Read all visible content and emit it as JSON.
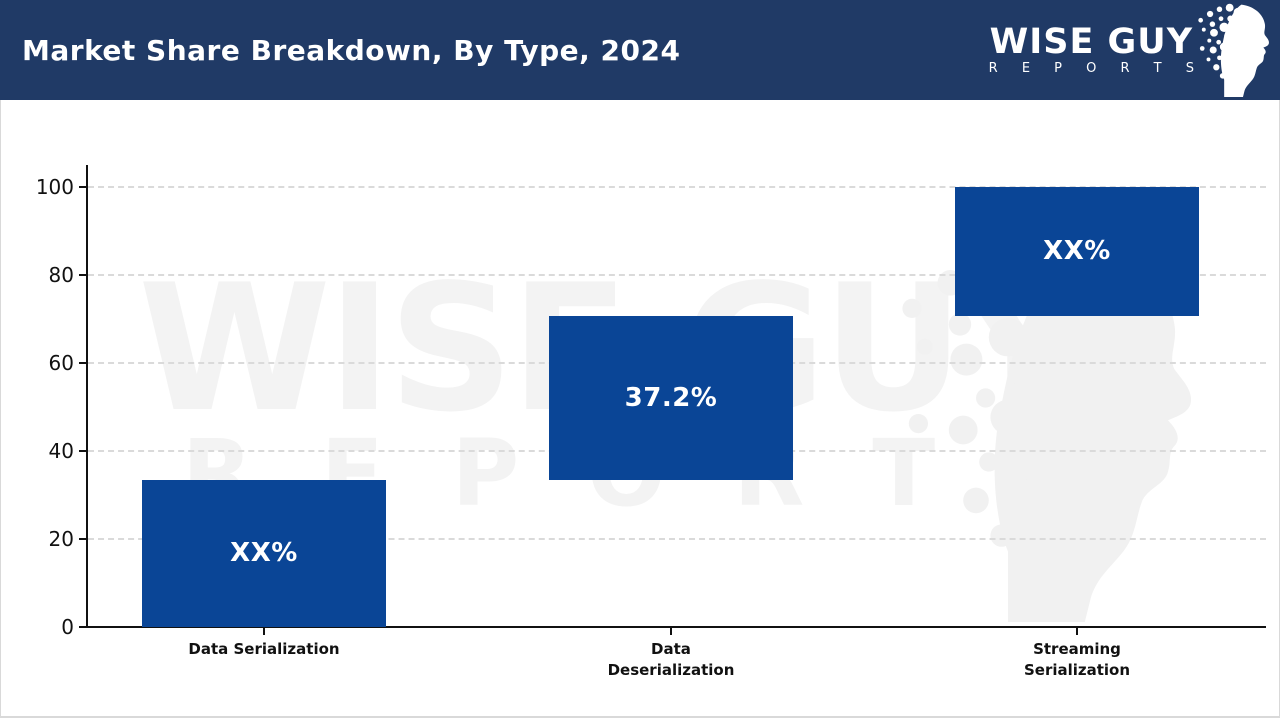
{
  "header": {
    "title": "Market Share Breakdown, By Type, 2024",
    "logo": {
      "line1": "WISE GUY",
      "line2": "R E P O R T S"
    }
  },
  "watermark": {
    "line1": "WISE GUY",
    "line2": "R E P O R T S"
  },
  "chart_data": {
    "type": "bar",
    "subtype": "waterfall",
    "title": "Market Share Breakdown, By Type, 2024",
    "categories": [
      "Data Serialization",
      "Data\nDeserialization",
      "Streaming\nSerialization"
    ],
    "segments": [
      {
        "category": "Data Serialization",
        "start": 0,
        "end": 33.5,
        "label": "XX%"
      },
      {
        "category": "Data\nDeserialization",
        "start": 33.5,
        "end": 70.7,
        "label": "37.2%"
      },
      {
        "category": "Streaming\nSerialization",
        "start": 70.7,
        "end": 100,
        "label": "XX%"
      }
    ],
    "yticks": [
      0,
      20,
      40,
      60,
      80,
      100
    ],
    "ylim": [
      0,
      100
    ],
    "xlabel": "",
    "ylabel": "",
    "grid": "horizontal-dashed",
    "legend": "none",
    "bar_color": "#0A4596",
    "bar_label_color": "#ffffff",
    "axis_color": "#111111",
    "gridline_color": "#dadada"
  },
  "colors": {
    "header_background": "#203A66",
    "header_text": "#ffffff",
    "chart_background": "#ffffff",
    "watermark": "#f3f3f3",
    "edge_line": "#d9d9d9"
  }
}
